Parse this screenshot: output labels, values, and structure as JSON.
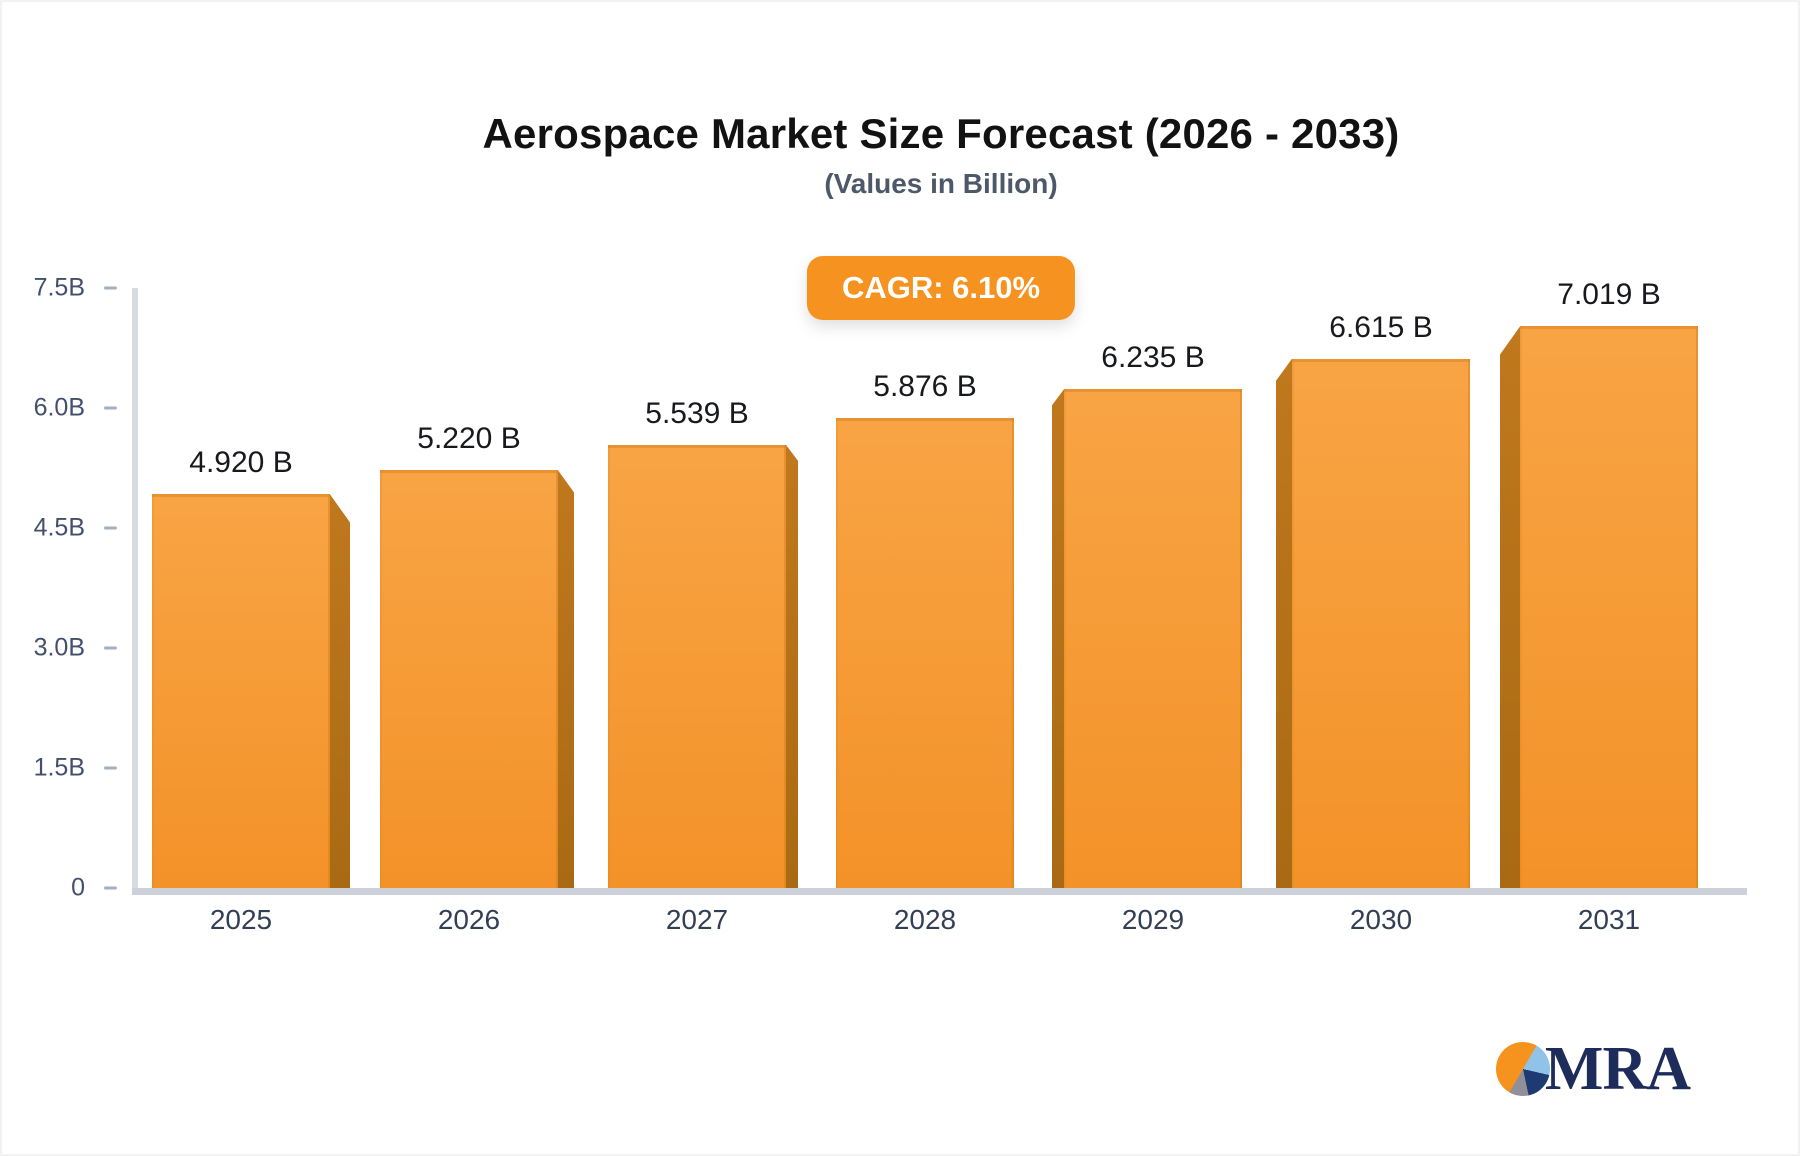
{
  "header": {
    "title": "Aerospace Market Size Forecast (2026 - 2033)",
    "subtitle": "(Values in Billion)"
  },
  "badge": {
    "label": "CAGR: 6.10%",
    "bg_color": "#f6921f",
    "text_color": "#ffffff"
  },
  "chart_data": {
    "type": "bar",
    "title": "Aerospace Market Size Forecast (2026 - 2033)",
    "subtitle": "(Values in Billion)",
    "annotation": "CAGR: 6.10%",
    "categories": [
      "2025",
      "2026",
      "2027",
      "2028",
      "2029",
      "2030",
      "2031"
    ],
    "values": [
      4.92,
      5.22,
      5.539,
      5.876,
      6.235,
      6.615,
      7.019
    ],
    "bar_labels": [
      "4.920 B",
      "5.220 B",
      "5.539 B",
      "5.876 B",
      "6.235 B",
      "6.615 B",
      "7.019 B"
    ],
    "xlabel": "",
    "ylabel": "",
    "ylim": [
      0,
      7.5
    ],
    "ytick_values": [
      7.5,
      6.0,
      4.5,
      3.0,
      1.5,
      0
    ],
    "ytick_labels": [
      "7.5B",
      "6.0B",
      "4.5B",
      "3.0B",
      "1.5B",
      "0"
    ],
    "grid": false,
    "legend": null,
    "bar_color_top": "#f8a445",
    "bar_color_bottom": "#f39228",
    "bar_side_color": "#b5701a",
    "style": "3d-extruded-bars, perspective toward center"
  },
  "logo": {
    "text": "MRA",
    "pie_colors": [
      "#f6921e",
      "#8fc3e8",
      "#1e3a73",
      "#90909a"
    ]
  }
}
